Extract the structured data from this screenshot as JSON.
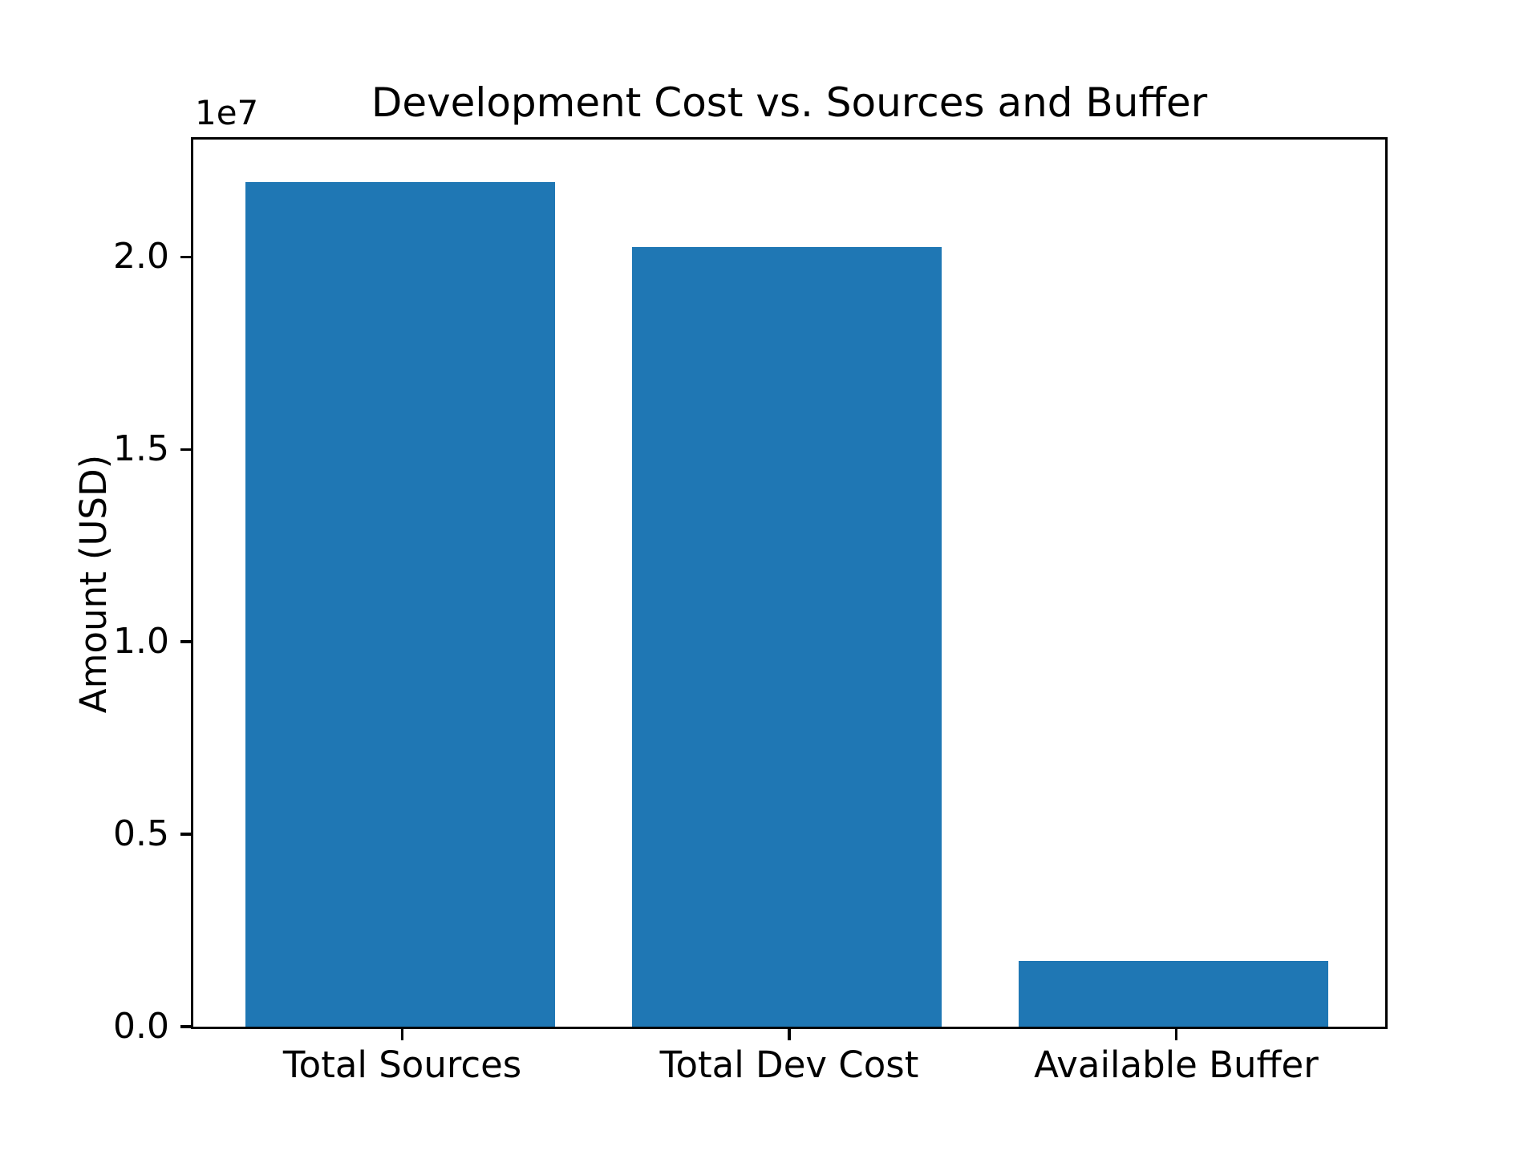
{
  "chart_data": {
    "type": "bar",
    "title": "Development Cost vs. Sources and Buffer",
    "ylabel": "Amount (USD)",
    "xlabel": "",
    "categories": [
      "Total Sources",
      "Total Dev Cost",
      "Available Buffer"
    ],
    "values": [
      21950000,
      20250000,
      1700000
    ],
    "bar_color": "#1f77b4",
    "bar_width_fraction": 0.8,
    "xlim": [
      -0.54,
      2.54
    ],
    "ylim": [
      0,
      23050000
    ],
    "yticks": [
      0,
      5000000,
      10000000,
      15000000,
      20000000
    ],
    "ytick_labels": [
      "0.0",
      "0.5",
      "1.0",
      "1.5",
      "2.0"
    ],
    "offset_text": "1e7",
    "grid": false,
    "legend": null,
    "axis_color": "#000000",
    "background": "#ffffff"
  }
}
